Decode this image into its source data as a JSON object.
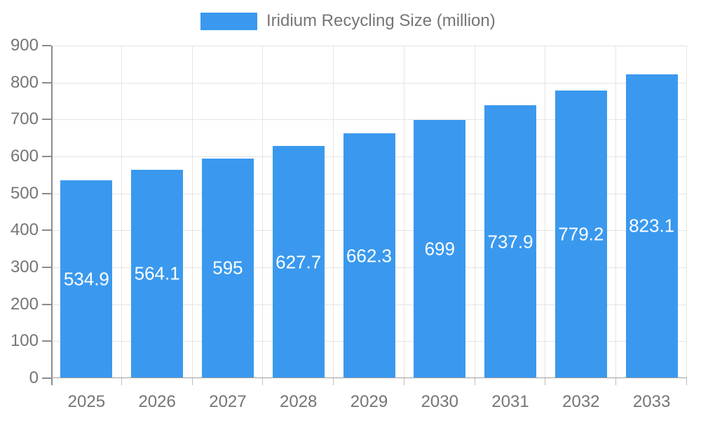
{
  "legend": {
    "label": "Iridium Recycling Size (million)"
  },
  "chart_data": {
    "type": "bar",
    "title": "",
    "xlabel": "",
    "ylabel": "",
    "categories": [
      "2025",
      "2026",
      "2027",
      "2028",
      "2029",
      "2030",
      "2031",
      "2032",
      "2033"
    ],
    "values": [
      534.9,
      564.1,
      595,
      627.7,
      662.3,
      699,
      737.9,
      779.2,
      823.1
    ],
    "value_labels": [
      "534.9",
      "564.1",
      "595",
      "627.7",
      "662.3",
      "699",
      "737.9",
      "779.2",
      "823.1"
    ],
    "series_name": "Iridium Recycling Size (million)",
    "ylim": [
      0,
      900
    ],
    "yticks": [
      0,
      100,
      200,
      300,
      400,
      500,
      600,
      700,
      800,
      900
    ],
    "ytick_labels": [
      "0",
      "100",
      "200",
      "300",
      "400",
      "500",
      "600",
      "700",
      "800",
      "900"
    ],
    "grid": true,
    "legend_position": "top",
    "colors": {
      "bar": "#3A99EE",
      "bar_label": "#ffffff",
      "axis_text": "#757575",
      "grid_line": "#e4e4e4",
      "axis_line": "#8c8c8c"
    }
  }
}
